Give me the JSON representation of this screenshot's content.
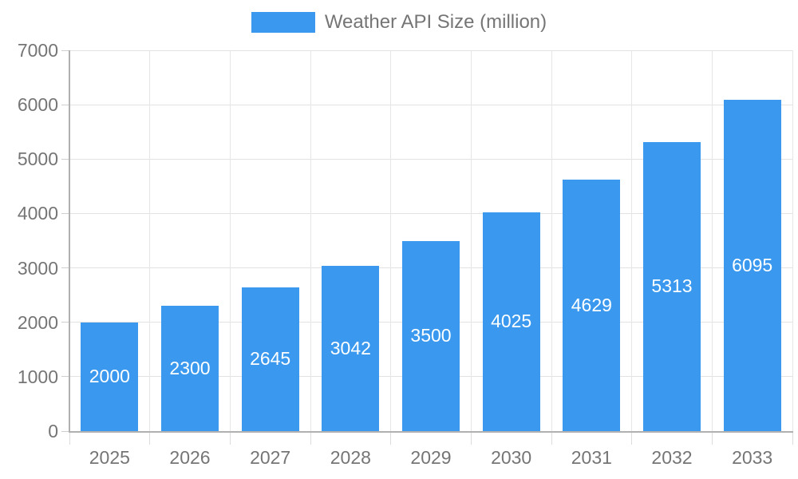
{
  "chart_data": {
    "type": "bar",
    "title": "",
    "legend": "Weather API Size (million)",
    "legend_position": "top-center",
    "categories": [
      "2025",
      "2026",
      "2027",
      "2028",
      "2029",
      "2030",
      "2031",
      "2032",
      "2033"
    ],
    "values": [
      2000,
      2300,
      2645,
      3042,
      3500,
      4025,
      4629,
      5313,
      6095
    ],
    "value_labels_visible": true,
    "value_label_color": "#ffffff",
    "xlabel": "",
    "ylabel": "",
    "ylim": [
      0,
      7000
    ],
    "yticks": [
      0,
      1000,
      2000,
      3000,
      4000,
      5000,
      6000,
      7000
    ],
    "grid": true,
    "bar_color": "#3a99ee",
    "axis_line_color": "#b0b0b0",
    "grid_color": "#e2e2e2",
    "tick_text_color": "#757575"
  }
}
